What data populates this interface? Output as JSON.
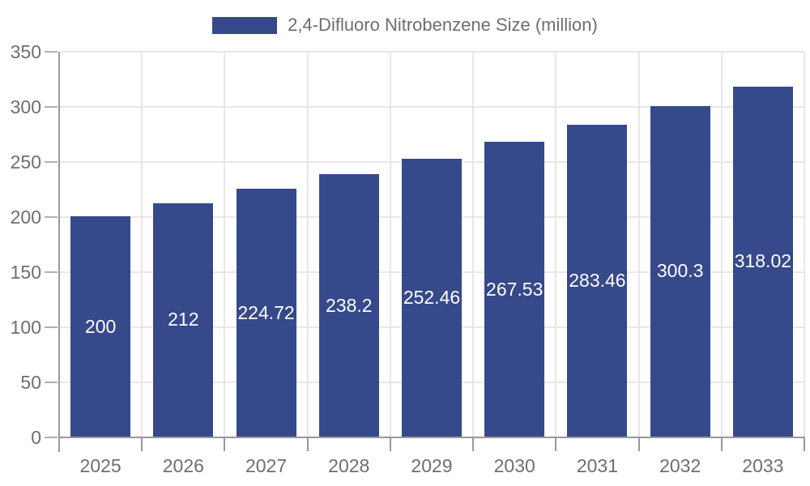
{
  "chart_data": {
    "type": "bar",
    "title": "2,4-Difluoro Nitrobenzene Size (million)",
    "legend": {
      "position": "top",
      "entries": [
        {
          "label": "2,4-Difluoro Nitrobenzene Size (million)",
          "color": "#36498a"
        }
      ]
    },
    "categories": [
      "2025",
      "2026",
      "2027",
      "2028",
      "2029",
      "2030",
      "2031",
      "2032",
      "2033"
    ],
    "series": [
      {
        "name": "2,4-Difluoro Nitrobenzene Size (million)",
        "values": [
          200,
          212,
          224.72,
          238.2,
          252.46,
          267.53,
          283.46,
          300.3,
          318.02
        ],
        "data_labels": [
          "200",
          "212",
          "224.72",
          "238.2",
          "252.46",
          "267.53",
          "283.46",
          "300.3",
          "318.02"
        ],
        "color": "#36498a",
        "label_color": "#ffffff"
      }
    ],
    "xlabel": "",
    "ylabel": "",
    "ylim": [
      0,
      350
    ],
    "yticks": [
      0,
      50,
      100,
      150,
      200,
      250,
      300,
      350
    ],
    "grid": true,
    "data_label_position": "inside-center"
  },
  "style": {
    "background": "#ffffff",
    "axis_color": "#999999",
    "tick_color": "#b0b0b0",
    "grid_color": "#e7e7e7",
    "text_color": "#6e6e6e"
  }
}
